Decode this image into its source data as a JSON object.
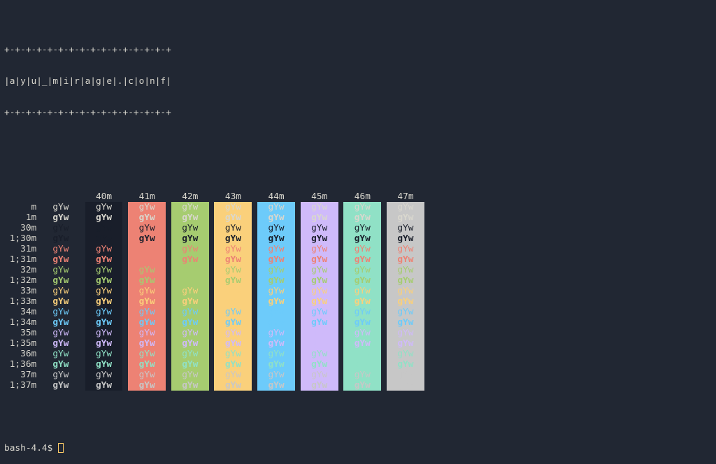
{
  "terminal": {
    "bg_color": "#212733",
    "fg_color": "#d9d7ce",
    "cursor_color": "#ffcc66",
    "banner_text": "ayu_mirage.conf",
    "ascii_banner": [
      "+-+-+-+-+-+-+-+-+-+-+-+-+-+-+-+",
      "|a|y|u|_|m|i|r|a|g|e|.|c|o|n|f|",
      "+-+-+-+-+-+-+-+-+-+-+-+-+-+-+-+"
    ],
    "prompt": "bash-4.4$"
  },
  "color_chart": {
    "test_text": "gYw",
    "column_headers": [
      "40m",
      "41m",
      "42m",
      "43m",
      "44m",
      "45m",
      "46m",
      "47m"
    ],
    "bg_colors": [
      "#191e2a",
      "#ed8274",
      "#a6cc70",
      "#fad07b",
      "#6dcbfa",
      "#cfbafa",
      "#90e1c6",
      "#c7c7c7"
    ],
    "rows": [
      {
        "label": "m",
        "fg": "#d9d7ce",
        "bold": false
      },
      {
        "label": "1m",
        "fg": "#d9d7ce",
        "bold": true
      },
      {
        "label": "30m",
        "fg": "#191e2a",
        "bold": false
      },
      {
        "label": "1;30m",
        "fg": "#191e2a",
        "bold": true
      },
      {
        "label": "31m",
        "fg": "#ed8274",
        "bold": false
      },
      {
        "label": "1;31m",
        "fg": "#ed8274",
        "bold": true
      },
      {
        "label": "32m",
        "fg": "#a6cc70",
        "bold": false
      },
      {
        "label": "1;32m",
        "fg": "#a6cc70",
        "bold": true
      },
      {
        "label": "33m",
        "fg": "#fad07b",
        "bold": false
      },
      {
        "label": "1;33m",
        "fg": "#fad07b",
        "bold": true
      },
      {
        "label": "34m",
        "fg": "#6dcbfa",
        "bold": false
      },
      {
        "label": "1;34m",
        "fg": "#6dcbfa",
        "bold": true
      },
      {
        "label": "35m",
        "fg": "#cfbafa",
        "bold": false
      },
      {
        "label": "1;35m",
        "fg": "#cfbafa",
        "bold": true
      },
      {
        "label": "36m",
        "fg": "#90e1c6",
        "bold": false
      },
      {
        "label": "1;36m",
        "fg": "#90e1c6",
        "bold": true
      },
      {
        "label": "37m",
        "fg": "#c7c7c7",
        "bold": false
      },
      {
        "label": "1;37m",
        "fg": "#c7c7c7",
        "bold": true
      }
    ]
  }
}
